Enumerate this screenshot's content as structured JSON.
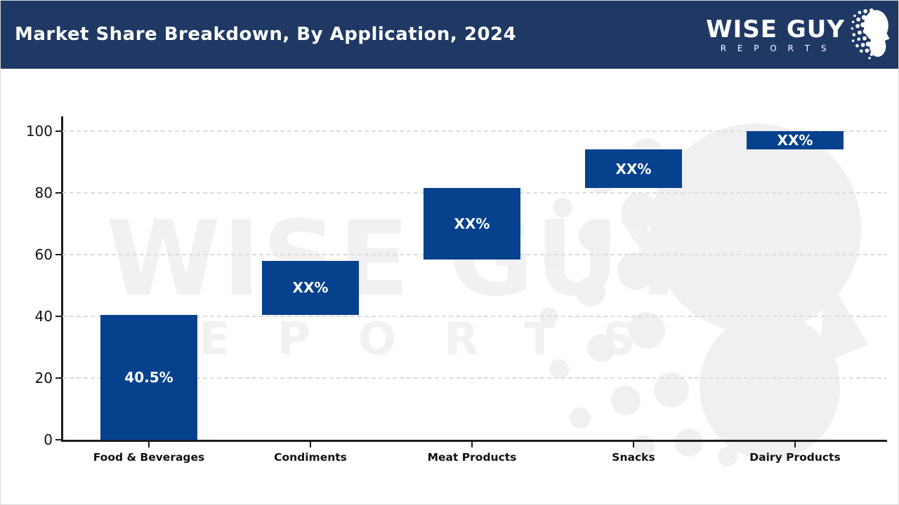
{
  "header": {
    "title": "Market Share Breakdown, By Application, 2024",
    "logo": {
      "line1": "WISE GUY",
      "line2": "R E P O R T S",
      "face_icon": "head-profile-dots"
    }
  },
  "watermark": {
    "line1": "WISE GUY",
    "line2": "REPORTS"
  },
  "colors": {
    "header_bg": "#1F3864",
    "bar_fill": "#05418D",
    "bar_label": "#FFFFFF",
    "gridline": "#DCDCDC",
    "axis": "#1C1C1C",
    "tick_label": "#111111",
    "watermark": "#F1F1F3",
    "page_border": "#D9D9D9"
  },
  "chart_data": {
    "type": "bar",
    "subtype": "waterfall",
    "title": "Market Share Breakdown, By Application, 2024",
    "categories": [
      "Food & Beverages",
      "Condiments",
      "Meat Products",
      "Snacks",
      "Dairy Products"
    ],
    "bars": [
      {
        "category": "Food & Beverages",
        "start": 0,
        "end": 40.5,
        "label": "40.5%"
      },
      {
        "category": "Condiments",
        "start": 40.5,
        "end": 58,
        "label": "XX%"
      },
      {
        "category": "Meat Products",
        "start": 58.5,
        "end": 81.5,
        "label": "XX%"
      },
      {
        "category": "Snacks",
        "start": 81.5,
        "end": 94,
        "label": "XX%"
      },
      {
        "category": "Dairy Products",
        "start": 94,
        "end": 100,
        "label": "XX%"
      }
    ],
    "xlabel": "",
    "ylabel": "",
    "ylim": [
      0,
      100
    ],
    "yticks": [
      0,
      20,
      40,
      60,
      80,
      100
    ],
    "grid": "horizontal-dashed",
    "legend": "none"
  }
}
